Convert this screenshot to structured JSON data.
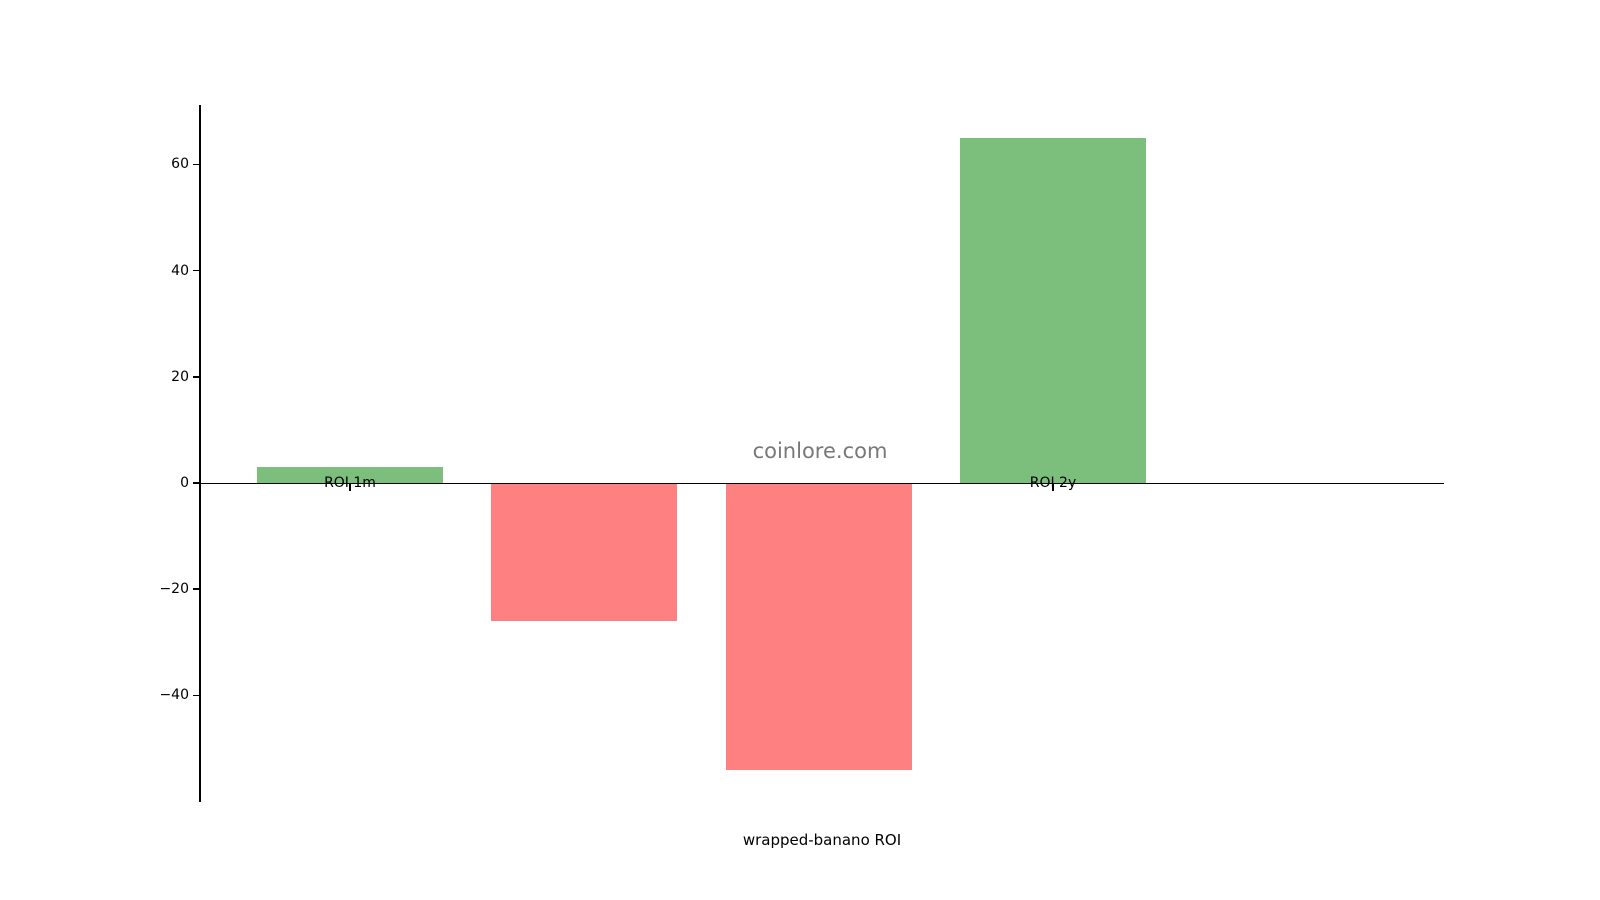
{
  "chart_data": {
    "type": "bar",
    "categories": [
      "ROI 1m",
      "",
      "",
      "ROI 2y"
    ],
    "values": [
      3,
      -26,
      -54,
      65
    ],
    "series_name": "wrapped-banano ROI",
    "title": "",
    "xlabel": "wrapped-banano ROI",
    "ylabel": "",
    "yticks": [
      60,
      40,
      20,
      0,
      -20,
      -40
    ],
    "ylim": [
      -60,
      71
    ],
    "grid": false,
    "legend_position": "none",
    "colors": {
      "positive_bar": "#7cbf7c",
      "negative_bar": "#ff8080",
      "axis": "#000000",
      "tick_label": "#000000",
      "watermark": "#787878"
    }
  },
  "watermark": {
    "text": "coinlore.com"
  }
}
